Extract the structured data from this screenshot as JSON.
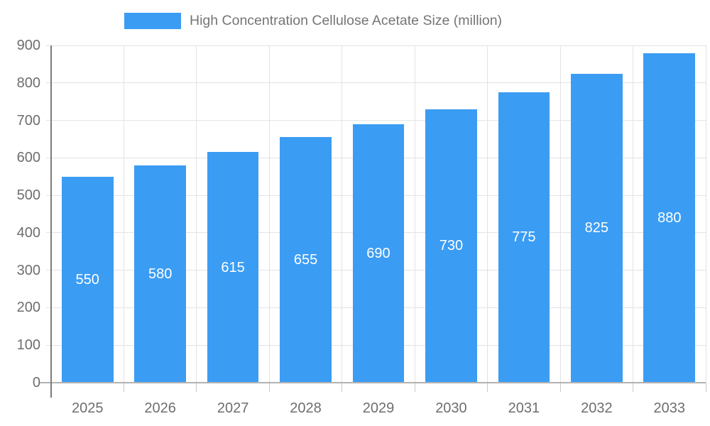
{
  "chart_data": {
    "type": "bar",
    "title": "",
    "legend": "High Concentration Cellulose Acetate Size (million)",
    "legend_position": "top",
    "categories": [
      "2025",
      "2026",
      "2027",
      "2028",
      "2029",
      "2030",
      "2031",
      "2032",
      "2033"
    ],
    "series": [
      {
        "name": "High Concentration Cellulose Acetate Size (million)",
        "values": [
          550,
          580,
          615,
          655,
          690,
          730,
          775,
          825,
          880
        ]
      }
    ],
    "xlabel": "",
    "ylabel": "",
    "ylim": [
      0,
      900
    ],
    "ytick_step": 100,
    "grid": "on",
    "value_label_position": "inside-middle",
    "colors": {
      "bar": "#3b9cf3",
      "value_label": "#ffffff",
      "axis_text": "#6e6e6e",
      "legend_text": "#757575",
      "gridline": "#e3e3e3",
      "x_axis_line": "#b2b2b2",
      "y_axis_line": "#7b7b7b"
    }
  }
}
